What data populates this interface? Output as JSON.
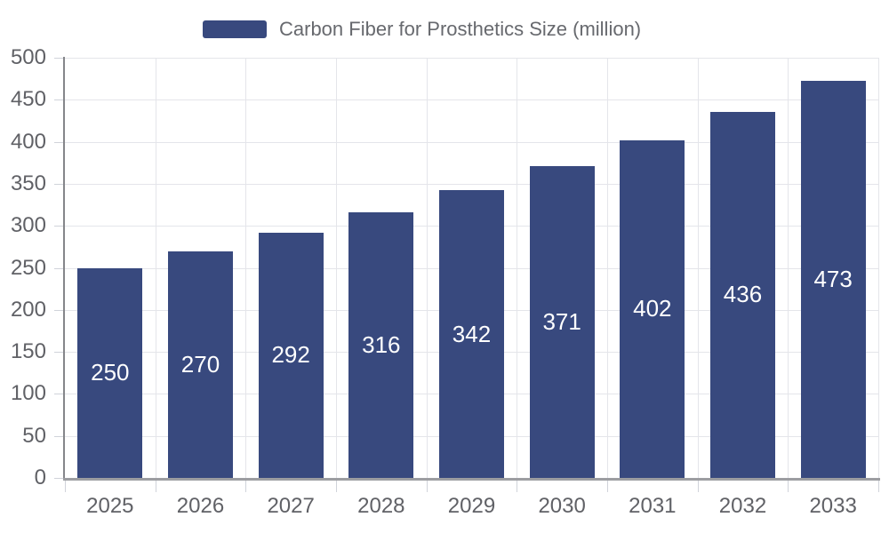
{
  "legend": {
    "label": "Carbon Fiber for Prosthetics Size (million)"
  },
  "chart_data": {
    "type": "bar",
    "title": "Carbon Fiber for Prosthetics Size (million)",
    "categories": [
      "2025",
      "2026",
      "2027",
      "2028",
      "2029",
      "2030",
      "2031",
      "2032",
      "2033"
    ],
    "series": [
      {
        "name": "Carbon Fiber for Prosthetics Size (million)",
        "values": [
          250,
          270,
          292,
          316,
          342,
          371,
          402,
          436,
          473
        ]
      }
    ],
    "xlabel": "",
    "ylabel": "",
    "ylim": [
      0,
      500
    ],
    "yticks": [
      0,
      50,
      100,
      150,
      200,
      250,
      300,
      350,
      400,
      450,
      500
    ],
    "grid": true,
    "legend_position": "top-center",
    "value_label_position": "inside-center"
  },
  "colors": {
    "bar": "#38497e",
    "value_label": "#ffffff",
    "grid_line": "#e4e5ea",
    "axis_line_y": "#85868a",
    "axis_line_x": "#9c9da1",
    "tick": "#d0d3da",
    "axis_label": "#606166",
    "legend_text": "#67696e",
    "background": "#ffffff"
  }
}
